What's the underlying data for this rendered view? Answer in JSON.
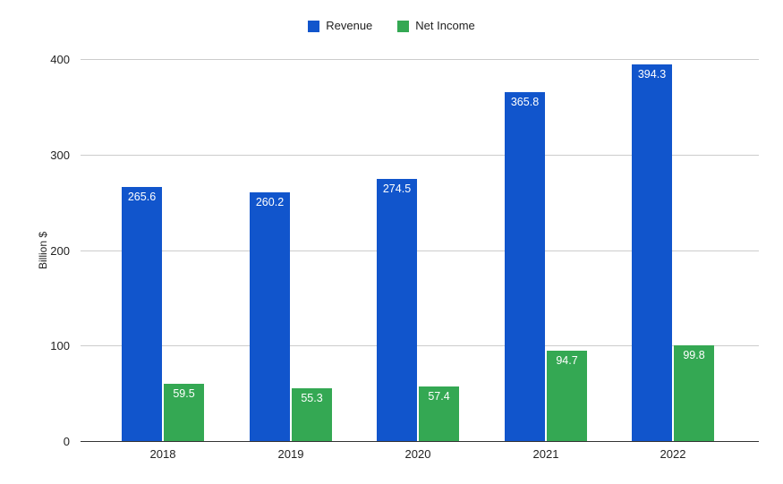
{
  "chart_data": {
    "type": "bar",
    "title": "",
    "categories": [
      "2018",
      "2019",
      "2020",
      "2021",
      "2022"
    ],
    "series": [
      {
        "name": "Revenue",
        "color": "#1155cc",
        "values": [
          265.6,
          260.2,
          274.5,
          365.8,
          394.3
        ]
      },
      {
        "name": "Net Income",
        "color": "#34a853",
        "values": [
          59.5,
          55.3,
          57.4,
          94.7,
          99.8
        ]
      }
    ],
    "xlabel": "",
    "ylabel": "Billion $",
    "ylim": [
      0,
      400
    ],
    "ytick_interval": 100,
    "yticks": [
      0,
      100,
      200,
      300,
      400
    ],
    "grid": true,
    "legend_position": "top-center",
    "bar_value_labels": true,
    "bar_label_color": "#ffffff"
  },
  "colors": {
    "background": "#ffffff",
    "gridline": "#cccccc",
    "axis_line": "#333333",
    "tick_text": "#222222",
    "revenue": "#1155cc",
    "net_income": "#34a853"
  }
}
